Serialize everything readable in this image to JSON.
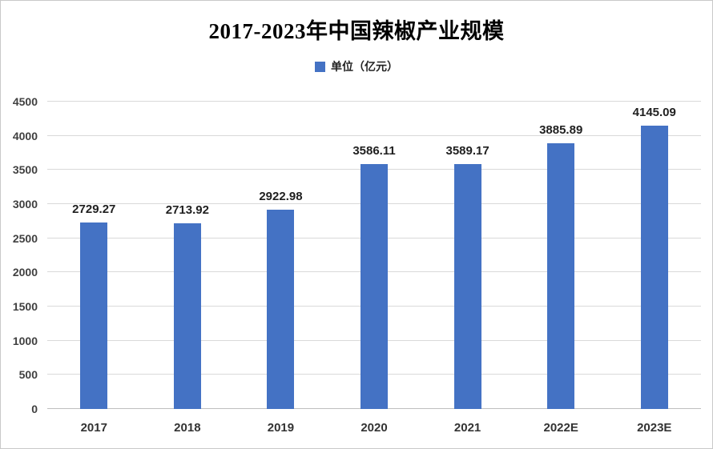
{
  "chart_data": {
    "type": "bar",
    "title": "2017-2023年中国辣椒产业规模",
    "legend": "单位（亿元）",
    "legend_position": "top",
    "categories": [
      "2017",
      "2018",
      "2019",
      "2020",
      "2021",
      "2022E",
      "2023E"
    ],
    "values": [
      2729.27,
      2713.92,
      2922.98,
      3586.11,
      3589.17,
      3885.89,
      4145.09
    ],
    "value_labels": [
      "2729.27",
      "2713.92",
      "2922.98",
      "3586.11",
      "3589.17",
      "3885.89",
      "4145.09"
    ],
    "xlabel": "",
    "ylabel": "",
    "ylim": [
      0,
      4500
    ],
    "y_ticks": [
      0,
      500,
      1000,
      1500,
      2000,
      2500,
      3000,
      3500,
      4000,
      4500
    ],
    "grid": true,
    "bar_color": "#4472C4",
    "gridline_color": "#d9d9d9"
  }
}
